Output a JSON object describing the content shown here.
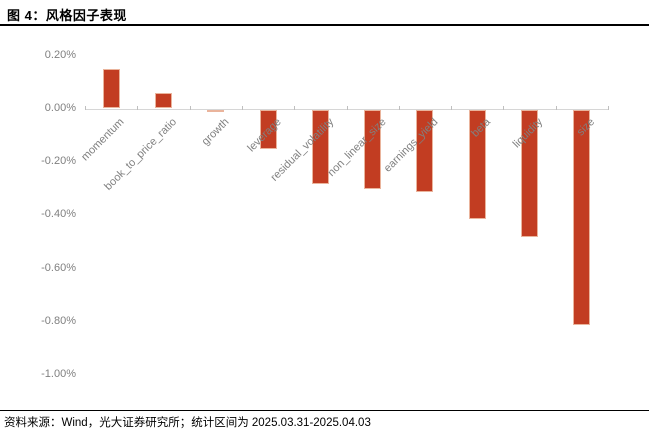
{
  "header": {
    "title": "图 4：风格因子表现"
  },
  "footer": {
    "source": "资料来源：Wind，光大证券研究所；统计区间为 2025.03.31-2025.04.03"
  },
  "colors": {
    "bar_fill": "#c23d22",
    "bar_edge": "#eab49c",
    "axis_line": "#d6d6d6",
    "tick_mark": "#bfbfbf",
    "axis_label_gray": "#808080",
    "title_text": "#000000"
  },
  "chart_data": {
    "type": "bar",
    "title": "风格因子表现",
    "categories": [
      "momentum",
      "book_to_price_ratio",
      "growth",
      "leverage",
      "residual_volatility",
      "non_linear_size",
      "earnings_yield",
      "beta",
      "liquidity",
      "size"
    ],
    "values": [
      0.15,
      0.06,
      -0.01,
      -0.15,
      -0.28,
      -0.3,
      -0.31,
      -0.41,
      -0.48,
      -0.81
    ],
    "unit": "%",
    "xlabel": "",
    "ylabel": "",
    "y_tick_labels": [
      "0.20%",
      "0.00%",
      "-0.20%",
      "-0.40%",
      "-0.60%",
      "-0.80%",
      "-1.00%"
    ],
    "y_tick_values": [
      0.2,
      0.0,
      -0.2,
      -0.4,
      -0.6,
      -0.8,
      -1.0
    ],
    "ylim": [
      -1.0,
      0.2
    ],
    "grid": false,
    "legend_position": "none",
    "bar_orientation": "vertical",
    "x_label_rotation_deg": -45
  }
}
